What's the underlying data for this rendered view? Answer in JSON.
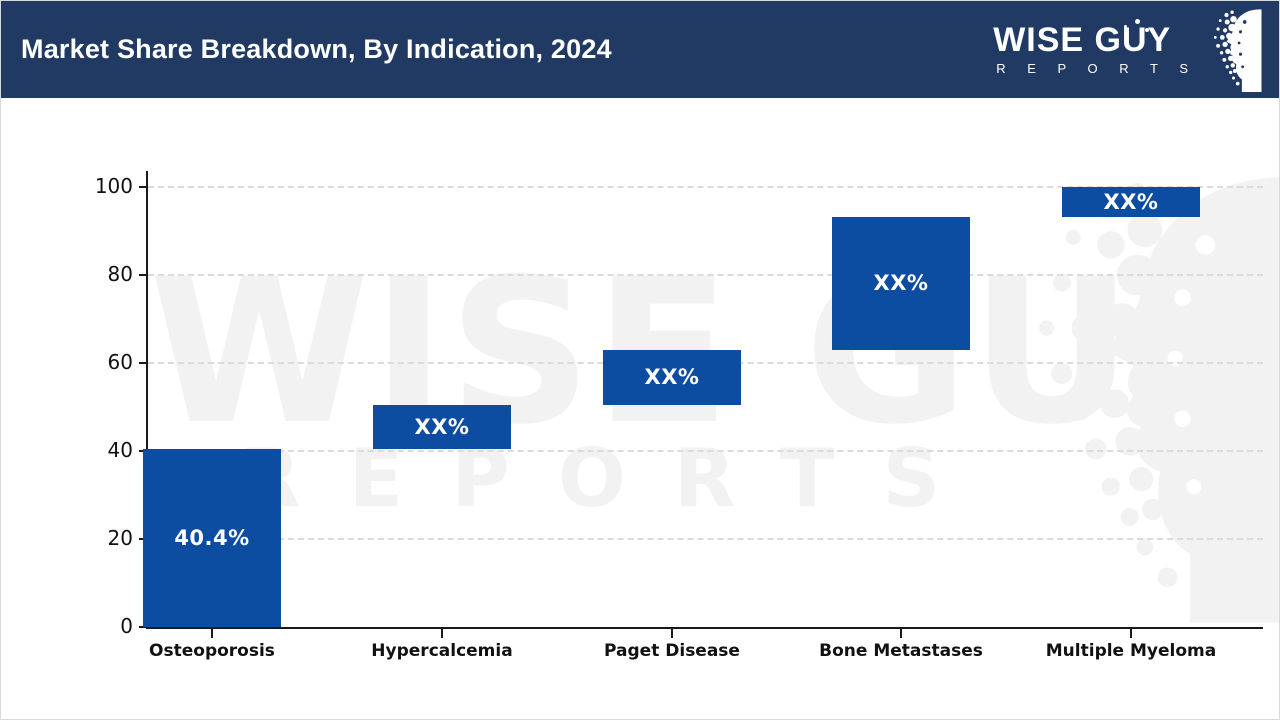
{
  "header": {
    "title": "Market Share Breakdown, By Indication, 2024",
    "logo": {
      "line1": "WISE GUY",
      "line2": "R E P O R T S"
    }
  },
  "watermark": {
    "line1": "WISE GUY",
    "line2": "REPORTS"
  },
  "colors": {
    "header_bg": "#213A64",
    "bar": "#0D4DA1",
    "bar_label": "#FFFFFF",
    "gridline": "#DBDBDB",
    "axis": "#1A1A1A",
    "watermark": "#F2F2F2"
  },
  "chart_data": {
    "type": "waterfall",
    "title": "Market Share Breakdown, By Indication, 2024",
    "categories": [
      "Osteoporosis",
      "Hypercalcemia",
      "Paget Disease",
      "Bone Metastases",
      "Multiple Myeloma"
    ],
    "segments": [
      {
        "category": "Osteoporosis",
        "start": 0,
        "end": 40.4,
        "label": "40.4%"
      },
      {
        "category": "Hypercalcemia",
        "start": 40.4,
        "end": 50.5,
        "label": "XX%"
      },
      {
        "category": "Paget Disease",
        "start": 50.5,
        "end": 63.0,
        "label": "XX%"
      },
      {
        "category": "Bone Metastases",
        "start": 63.0,
        "end": 93.2,
        "label": "XX%"
      },
      {
        "category": "Multiple Myeloma",
        "start": 93.2,
        "end": 100.0,
        "label": "XX%"
      }
    ],
    "yticks": [
      0,
      20,
      40,
      60,
      80,
      100
    ],
    "ylim": [
      0,
      105
    ],
    "xlabel": "",
    "ylabel": "",
    "grid": "dashed-horizontal",
    "legend": "none"
  }
}
